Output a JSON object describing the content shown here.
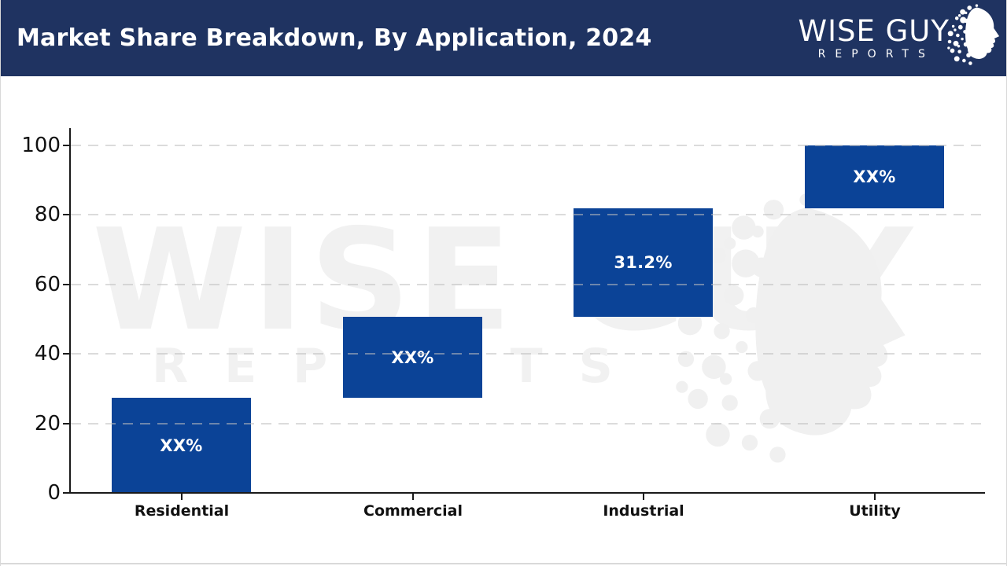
{
  "header": {
    "title": "Market Share Breakdown, By Application, 2024",
    "logo": {
      "line1": "WISE GUY",
      "line2": "REPORTS"
    }
  },
  "watermark": {
    "line1": "WISE GUY",
    "line2": "REPORTS"
  },
  "colors": {
    "header_bg": "#1f3361",
    "bar_blue": "#0b4397",
    "axis_black": "#1a1a1a",
    "grid_gray": "#d9d9d9",
    "watermark_gray": "#f1f1f1"
  },
  "chart_data": {
    "type": "bar",
    "subtype": "floating-waterfall",
    "title": "Market Share Breakdown, By Application, 2024",
    "categories": [
      "Residential",
      "Commercial",
      "Industrial",
      "Utility"
    ],
    "series": [
      {
        "name": "Market share (%)",
        "segments": [
          {
            "category": "Residential",
            "start": 0,
            "end": 27.3,
            "label": "XX%"
          },
          {
            "category": "Commercial",
            "start": 27.3,
            "end": 50.6,
            "label": "XX%"
          },
          {
            "category": "Industrial",
            "start": 50.6,
            "end": 81.8,
            "label": "31.2%"
          },
          {
            "category": "Utility",
            "start": 81.8,
            "end": 100,
            "label": "XX%"
          }
        ]
      }
    ],
    "xlabel": "",
    "ylabel": "",
    "ylim": [
      0,
      100
    ],
    "yticks": [
      0,
      20,
      40,
      60,
      80,
      100
    ],
    "grid": "horizontal-dashed",
    "legend": "none"
  }
}
